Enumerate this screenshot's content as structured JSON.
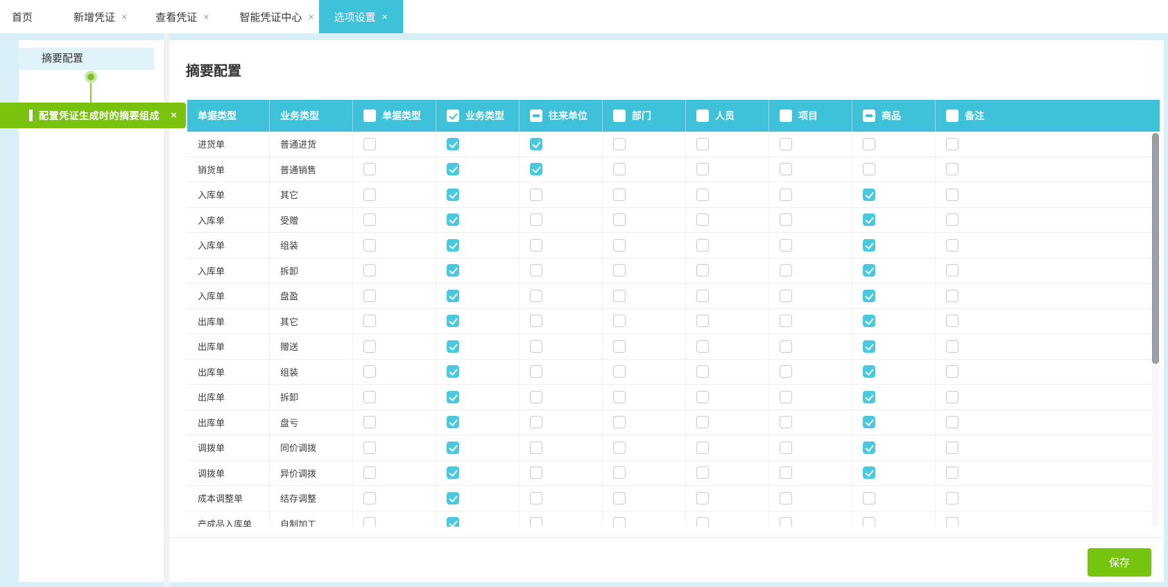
{
  "glyphs": {
    "close": "×"
  },
  "colors": {
    "accent_cyan": "#3EC2D9",
    "checkbox_checked_cyan": "#49C9DF",
    "accent_green": "#79C30E",
    "save_button_green": "#76C40D",
    "app_background": "#D9EFF8",
    "sidebar_header_bg": "#E1F3FA"
  },
  "tab_bar": {
    "window_close_glyph": "×",
    "tabs": [
      {
        "label": "首页",
        "closable": false,
        "active": false
      },
      {
        "label": "新增凭证",
        "closable": true,
        "active": false
      },
      {
        "label": "查看凭证",
        "closable": true,
        "active": false
      },
      {
        "label": "智能凭证中心",
        "closable": true,
        "active": false
      },
      {
        "label": "选项设置",
        "closable": true,
        "active": true
      }
    ]
  },
  "sidebar": {
    "header_label": "摘要配置",
    "tooltip": {
      "text": "配置凭证生成时的摘要组成",
      "close_glyph": "×"
    }
  },
  "main": {
    "title": "摘要配置",
    "save_label": "保存",
    "table": {
      "text_columns": [
        "单据类型",
        "业务类型"
      ],
      "checkbox_columns": [
        {
          "label": "单据类型",
          "state": "unchecked"
        },
        {
          "label": "业务类型",
          "state": "checked"
        },
        {
          "label": "往来单位",
          "state": "indeterminate"
        },
        {
          "label": "部门",
          "state": "unchecked"
        },
        {
          "label": "人员",
          "state": "unchecked"
        },
        {
          "label": "项目",
          "state": "unchecked"
        },
        {
          "label": "商品",
          "state": "indeterminate"
        },
        {
          "label": "备注",
          "state": "unchecked"
        }
      ],
      "rows": [
        {
          "doc_type": "进货单",
          "business_type": "普通进货",
          "checks": [
            0,
            1,
            1,
            0,
            0,
            0,
            0,
            0
          ]
        },
        {
          "doc_type": "销货单",
          "business_type": "普通销售",
          "checks": [
            0,
            1,
            1,
            0,
            0,
            0,
            0,
            0
          ]
        },
        {
          "doc_type": "入库单",
          "business_type": "其它",
          "checks": [
            0,
            1,
            0,
            0,
            0,
            0,
            1,
            0
          ]
        },
        {
          "doc_type": "入库单",
          "business_type": "受赠",
          "checks": [
            0,
            1,
            0,
            0,
            0,
            0,
            1,
            0
          ]
        },
        {
          "doc_type": "入库单",
          "business_type": "组装",
          "checks": [
            0,
            1,
            0,
            0,
            0,
            0,
            1,
            0
          ]
        },
        {
          "doc_type": "入库单",
          "business_type": "拆卸",
          "checks": [
            0,
            1,
            0,
            0,
            0,
            0,
            1,
            0
          ]
        },
        {
          "doc_type": "入库单",
          "business_type": "盘盈",
          "checks": [
            0,
            1,
            0,
            0,
            0,
            0,
            1,
            0
          ]
        },
        {
          "doc_type": "出库单",
          "business_type": "其它",
          "checks": [
            0,
            1,
            0,
            0,
            0,
            0,
            1,
            0
          ]
        },
        {
          "doc_type": "出库单",
          "business_type": "赠送",
          "checks": [
            0,
            1,
            0,
            0,
            0,
            0,
            1,
            0
          ]
        },
        {
          "doc_type": "出库单",
          "business_type": "组装",
          "checks": [
            0,
            1,
            0,
            0,
            0,
            0,
            1,
            0
          ]
        },
        {
          "doc_type": "出库单",
          "business_type": "拆卸",
          "checks": [
            0,
            1,
            0,
            0,
            0,
            0,
            1,
            0
          ]
        },
        {
          "doc_type": "出库单",
          "business_type": "盘亏",
          "checks": [
            0,
            1,
            0,
            0,
            0,
            0,
            1,
            0
          ]
        },
        {
          "doc_type": "调拨单",
          "business_type": "同价调拨",
          "checks": [
            0,
            1,
            0,
            0,
            0,
            0,
            1,
            0
          ]
        },
        {
          "doc_type": "调拨单",
          "business_type": "异价调拨",
          "checks": [
            0,
            1,
            0,
            0,
            0,
            0,
            1,
            0
          ]
        },
        {
          "doc_type": "成本调整单",
          "business_type": "结存调整",
          "checks": [
            0,
            1,
            0,
            0,
            0,
            0,
            0,
            0
          ]
        },
        {
          "doc_type": "产成品入库单",
          "business_type": "自制加工",
          "checks": [
            0,
            1,
            0,
            0,
            0,
            0,
            0,
            0
          ]
        }
      ]
    }
  }
}
